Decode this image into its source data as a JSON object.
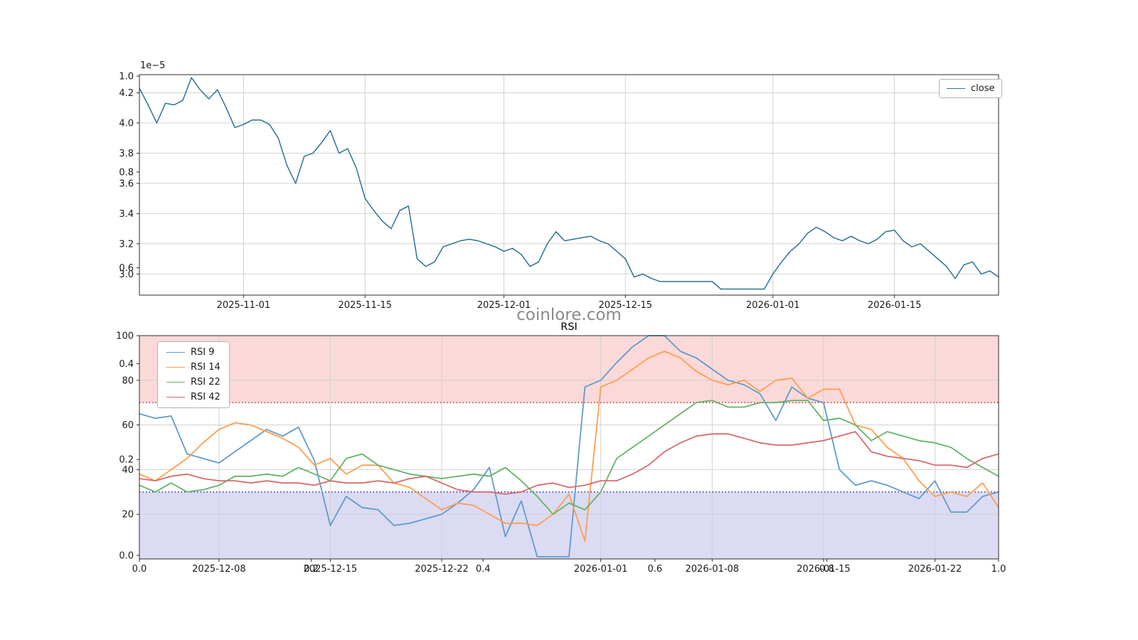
{
  "page": {
    "watermark": "coinlore.com"
  },
  "colors": {
    "background": "#ffffff",
    "grid": "#d0d0d0",
    "spine": "#2b2b2b",
    "text": "#1a1a1a",
    "watermark": "#8a8a8a"
  },
  "overlay_axis": {
    "xtick_labels": [
      "0.0",
      "0.2",
      "0.4",
      "0.6",
      "0.8",
      "1.0"
    ],
    "ytick_labels": [
      "1.0",
      "0.8",
      "0.6",
      "0.4",
      "0.2",
      "0.0"
    ]
  },
  "chart_data": [
    {
      "id": "price",
      "type": "line",
      "title": "",
      "offset_label": "1e−5",
      "grid": true,
      "legend_position": "upper right",
      "x_start_date": "2025-10-20",
      "x_unit": "day",
      "ylim": [
        2.86,
        4.32
      ],
      "yticks": [
        3.0,
        3.2,
        3.4,
        3.6,
        3.8,
        4.0,
        4.2
      ],
      "ytick_labels": [
        "3.0",
        "3.2",
        "3.4",
        "3.6",
        "3.8",
        "4.0",
        "4.2"
      ],
      "xtick_index": [
        12,
        26,
        42,
        56,
        73,
        87
      ],
      "xtick_labels": [
        "2025-11-01",
        "2025-11-15",
        "2025-12-01",
        "2025-12-15",
        "2026-01-01",
        "2026-01-15"
      ],
      "series": [
        {
          "name": "close",
          "color": "#2d7396",
          "values": [
            4.23,
            4.12,
            4.0,
            4.13,
            4.12,
            4.15,
            4.3,
            4.22,
            4.16,
            4.22,
            4.1,
            3.97,
            3.99,
            4.02,
            4.02,
            3.99,
            3.9,
            3.72,
            3.6,
            3.78,
            3.8,
            3.87,
            3.95,
            3.8,
            3.83,
            3.7,
            3.5,
            3.42,
            3.35,
            3.3,
            3.42,
            3.45,
            3.1,
            3.05,
            3.08,
            3.18,
            3.2,
            3.22,
            3.23,
            3.22,
            3.2,
            3.18,
            3.15,
            3.17,
            3.13,
            3.05,
            3.08,
            3.2,
            3.28,
            3.22,
            3.23,
            3.24,
            3.25,
            3.22,
            3.2,
            3.15,
            3.1,
            2.98,
            3.0,
            2.97,
            2.95,
            2.95,
            2.95,
            2.95,
            2.95,
            2.95,
            2.95,
            2.9,
            2.9,
            2.9,
            2.9,
            2.9,
            2.9,
            3.0,
            3.08,
            3.15,
            3.2,
            3.27,
            3.31,
            3.28,
            3.24,
            3.22,
            3.25,
            3.22,
            3.2,
            3.23,
            3.28,
            3.29,
            3.22,
            3.18,
            3.2,
            3.15,
            3.1,
            3.05,
            2.97,
            3.06,
            3.08,
            3.0,
            3.02,
            2.98
          ]
        }
      ]
    },
    {
      "id": "rsi",
      "type": "line",
      "title": "RSI",
      "grid": true,
      "legend_position": "upper left",
      "x_start_date": "2025-12-03",
      "x_unit": "day",
      "ylim": [
        0,
        100
      ],
      "yticks": [
        20,
        40,
        60,
        80,
        100
      ],
      "ytick_labels": [
        "20",
        "40",
        "60",
        "80",
        "100"
      ],
      "xtick_index": [
        5,
        12,
        19,
        29,
        36,
        43,
        50
      ],
      "xtick_labels": [
        "2025-12-08",
        "2025-12-15",
        "2025-12-22",
        "2026-01-01",
        "2026-01-08",
        "2026-01-15",
        "2026-01-22"
      ],
      "bands": [
        {
          "label": "overbought",
          "from": 70,
          "to": 100,
          "color": "#fbd9d9"
        },
        {
          "label": "oversold",
          "from": 0,
          "to": 30,
          "color": "#dcdbf4"
        }
      ],
      "thresholds": [
        {
          "value": 70,
          "color": "#c31414",
          "style": "dotted"
        },
        {
          "value": 30,
          "color": "#1414ad",
          "style": "dotted"
        }
      ],
      "series": [
        {
          "name": "RSI 9",
          "color": "#5f9bc9",
          "values": [
            65,
            63,
            64,
            47,
            45,
            43,
            48,
            53,
            58,
            55,
            59,
            44,
            15,
            28,
            23,
            22,
            15,
            16,
            18,
            20,
            25,
            31,
            41,
            10,
            26,
            1,
            1,
            1,
            77,
            80,
            88,
            95,
            100,
            100,
            93,
            90,
            85,
            80,
            78,
            74,
            62,
            77,
            72,
            70,
            40,
            33,
            35,
            33,
            30,
            27,
            35,
            21,
            21,
            28,
            30
          ]
        },
        {
          "name": "RSI 14",
          "color": "#ff9e4d",
          "values": [
            38,
            35,
            40,
            45,
            52,
            58,
            61,
            60,
            57,
            54,
            50,
            42,
            45,
            38,
            42,
            42,
            34,
            32,
            27,
            22,
            25,
            24,
            20,
            16,
            16,
            15,
            20,
            29,
            8,
            77,
            80,
            85,
            90,
            93,
            90,
            84,
            80,
            78,
            80,
            75,
            80,
            81,
            72,
            76,
            76,
            60,
            58,
            50,
            45,
            35,
            28,
            30,
            28,
            34,
            23
          ]
        },
        {
          "name": "RSI 22",
          "color": "#63b467",
          "values": [
            33,
            30,
            34,
            30,
            31,
            33,
            37,
            37,
            38,
            37,
            41,
            38,
            35,
            45,
            47,
            42,
            40,
            38,
            37,
            36,
            37,
            38,
            37,
            41,
            35,
            28,
            20,
            25,
            22,
            30,
            45,
            50,
            55,
            60,
            65,
            70,
            71,
            68,
            68,
            70,
            70,
            71,
            71,
            62,
            63,
            60,
            53,
            57,
            55,
            53,
            52,
            50,
            45,
            41,
            37
          ]
        },
        {
          "name": "RSI 42",
          "color": "#d96a6e",
          "values": [
            36,
            35,
            37,
            38,
            36,
            35,
            35,
            34,
            35,
            34,
            34,
            33,
            35,
            34,
            34,
            35,
            34,
            36,
            37,
            34,
            31,
            30,
            30,
            29,
            30,
            33,
            34,
            32,
            33,
            35,
            35,
            38,
            42,
            48,
            52,
            55,
            56,
            56,
            54,
            52,
            51,
            51,
            52,
            53,
            55,
            57,
            48,
            46,
            45,
            44,
            42,
            42,
            41,
            45,
            47
          ]
        }
      ]
    }
  ]
}
